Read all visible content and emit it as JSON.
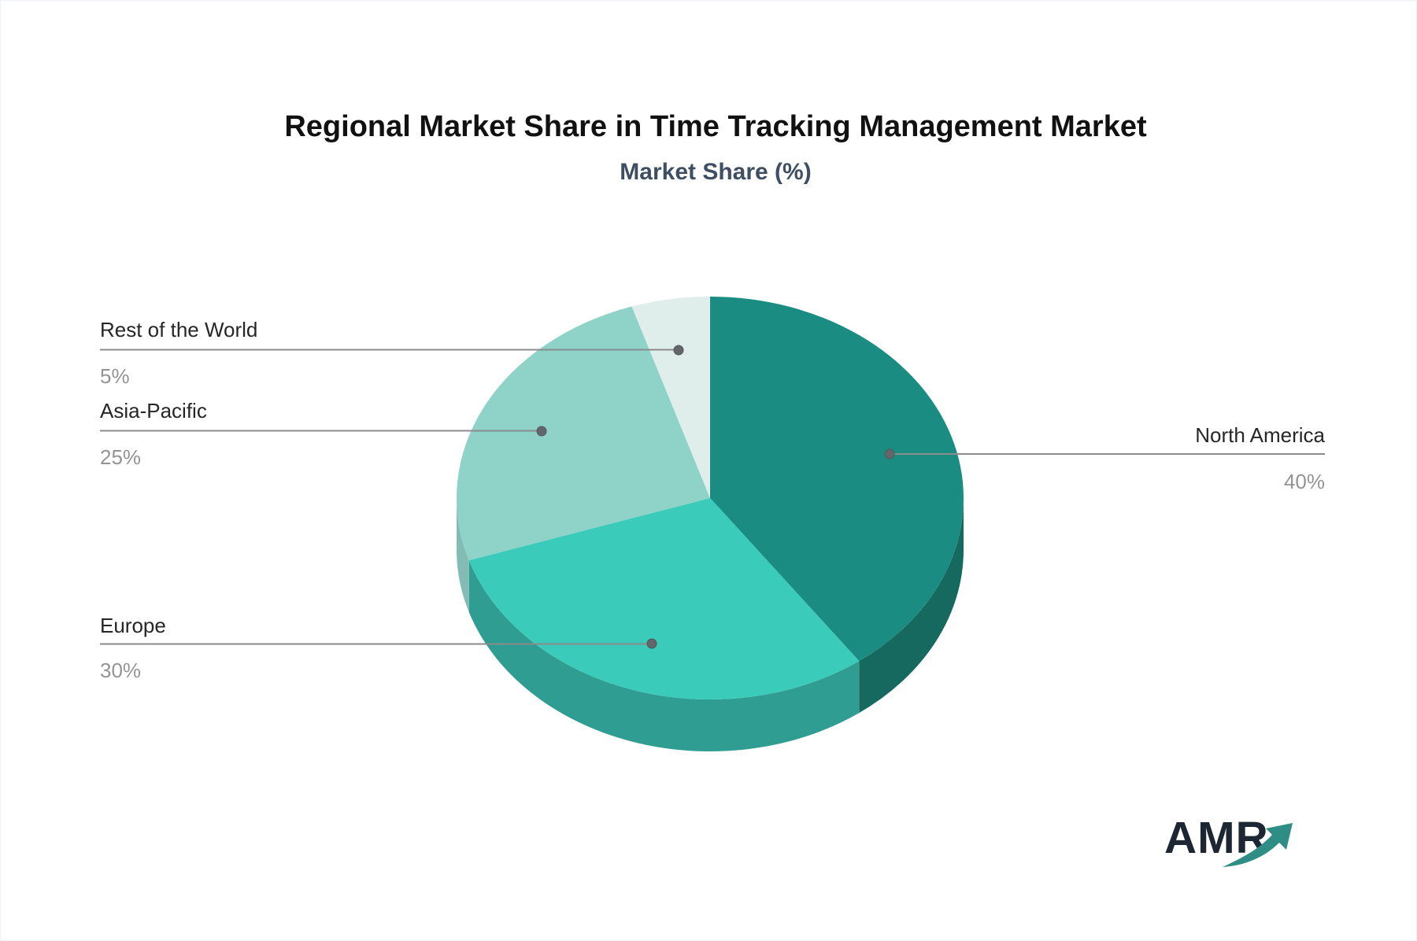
{
  "page": {
    "background": "#ffffff",
    "border_color": "#eef1f6"
  },
  "chart_data": {
    "type": "pie",
    "style": "3d",
    "title": "Regional Market Share in Time Tracking Management Market",
    "subtitle": "Market Share (%)",
    "unit": "%",
    "total": 100,
    "start_angle_deg": 0,
    "direction": "clockwise",
    "legend": "none",
    "label_style": "outside-leader-lines",
    "categories": [
      "North America",
      "Europe",
      "Asia-Pacific",
      "Rest of the World"
    ],
    "values": [
      40,
      30,
      25,
      5
    ],
    "slices": [
      {
        "id": "north-america",
        "label": "North America",
        "value": 40,
        "pct_label": "40%",
        "color": "#1b8c82",
        "side_color": "#15695f"
      },
      {
        "id": "europe",
        "label": "Europe",
        "value": 30,
        "pct_label": "30%",
        "color": "#3bcbba",
        "side_color": "#2f9d91"
      },
      {
        "id": "asia-pacific",
        "label": "Asia-Pacific",
        "value": 25,
        "pct_label": "25%",
        "color": "#8ed2c8",
        "side_color": "#82bcb2"
      },
      {
        "id": "rest-of-the-world",
        "label": "Rest of the World",
        "value": 5,
        "pct_label": "5%",
        "color": "#dfeeea",
        "side_color": "#c9e0db"
      }
    ]
  },
  "colors": {
    "title": "#111111",
    "subtitle": "#3e4e63",
    "label_text": "#262626",
    "percent_text": "#949494",
    "leader_line": "#8b8b8b",
    "leader_dot": "#63666a",
    "logo_text": "#1d2733",
    "logo_arrow": "#2e8d84"
  },
  "logo": {
    "text": "AMR"
  }
}
